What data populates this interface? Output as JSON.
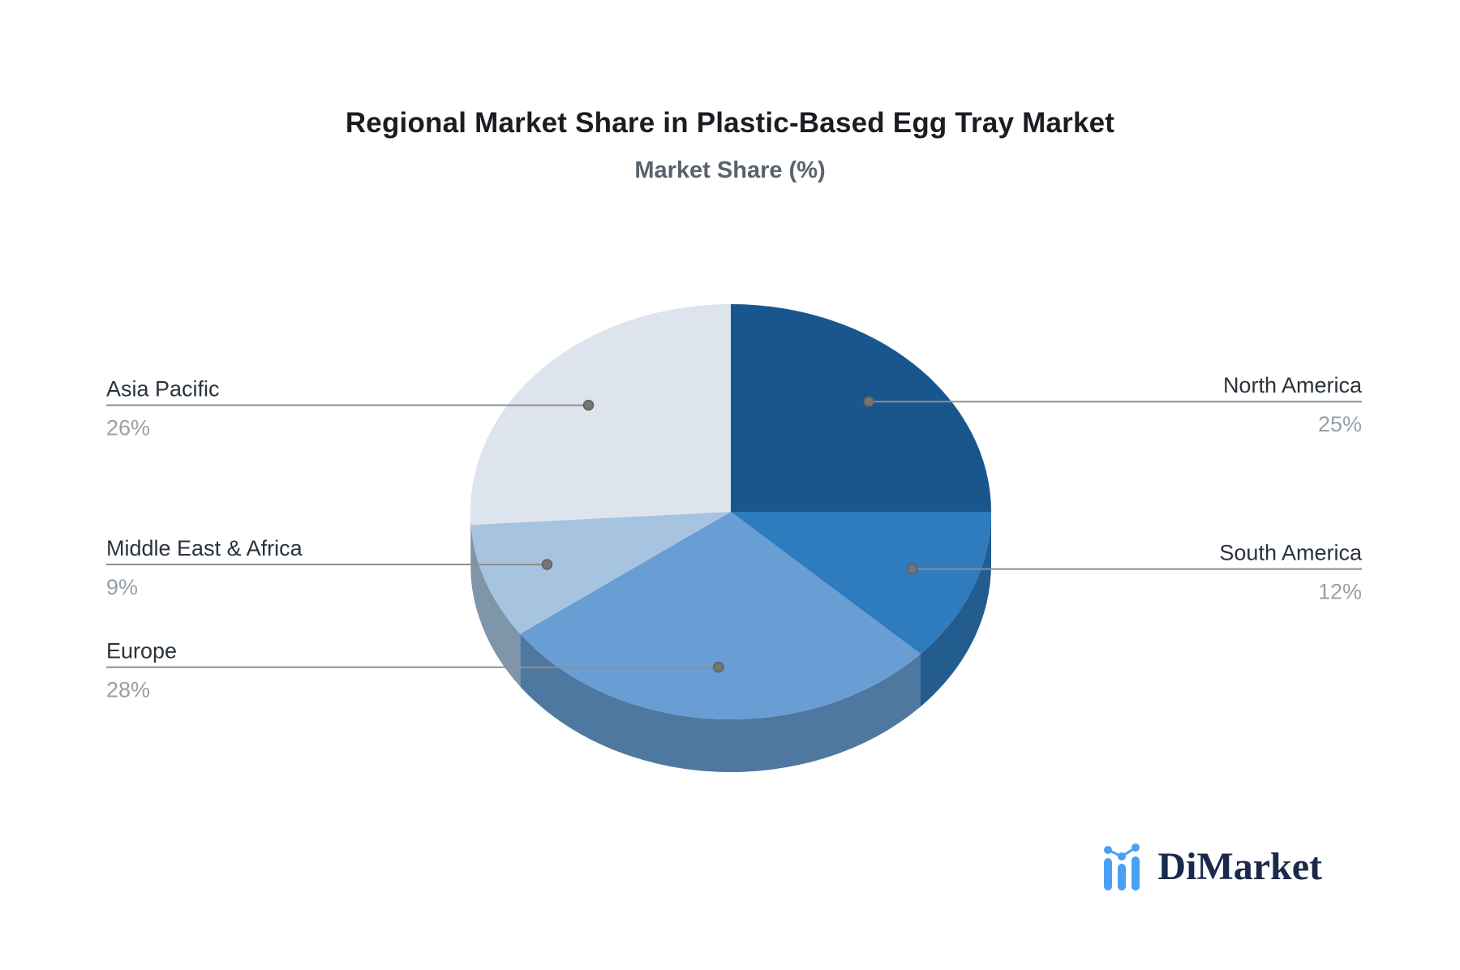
{
  "header": {
    "title": "Regional Market Share in Plastic-Based Egg Tray Market",
    "subtitle": "Market Share (%)"
  },
  "chart_data": {
    "type": "pie",
    "style": "3d",
    "title": "Regional Market Share in Plastic-Based Egg Tray Market",
    "subtitle": "Market Share (%)",
    "start_angle": "12 o'clock",
    "direction": "clockwise",
    "legend_position": "callout-labels",
    "slices": [
      {
        "label": "North America",
        "value": 25,
        "pct_label": "25%",
        "color": "#1A568E"
      },
      {
        "label": "South America",
        "value": 12,
        "pct_label": "12%",
        "color": "#2E7BBE"
      },
      {
        "label": "Europe",
        "value": 28,
        "pct_label": "28%",
        "color": "#689ED3"
      },
      {
        "label": "Middle East & Africa",
        "value": 9,
        "pct_label": "9%",
        "color": "#A6C4E0"
      },
      {
        "label": "Asia Pacific",
        "value": 26,
        "pct_label": "26%",
        "color": "#DEE4EE"
      }
    ],
    "label_text_color": "#2a333c",
    "pct_text_color": "#98a0a6",
    "leader_line_color": "#8e8e8e"
  },
  "logo": {
    "text": "DiMarket",
    "icon": "bar-chart-icon",
    "accent": "#4AA0F5",
    "text_color": "#1B2A4A"
  }
}
